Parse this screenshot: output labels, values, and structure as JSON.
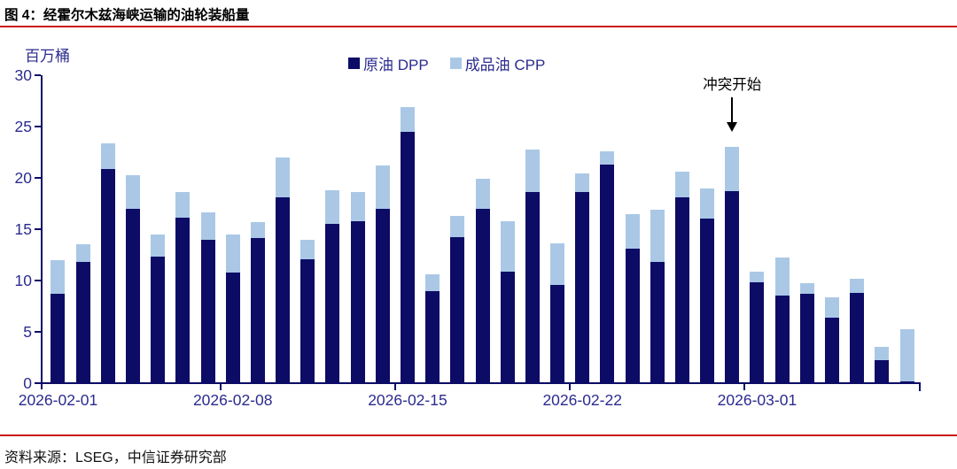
{
  "header": {
    "title": "图 4：经霍尔木兹海峡运输的油轮装船量"
  },
  "footer": {
    "source": "资料来源：LSEG，中信证券研究部"
  },
  "colors": {
    "bar_dpp": "#0c0c66",
    "bar_cpp": "#aac8e6",
    "axis": "#0c0c66",
    "axis_text": "#2b2b8f",
    "accent_red": "#c81414",
    "text": "#000000"
  },
  "chart_data": {
    "type": "bar",
    "stacked": true,
    "title": "经霍尔木兹海峡运输的油轮装船量",
    "unit_label": "百万桶",
    "ylabel": "百万桶",
    "ylim": [
      0,
      30
    ],
    "yticks": [
      0,
      5,
      10,
      15,
      20,
      25,
      30
    ],
    "grid": false,
    "legend_position": "top-center",
    "categories": [
      "2026-02-01",
      "2026-02-02",
      "2026-02-03",
      "2026-02-04",
      "2026-02-05",
      "2026-02-06",
      "2026-02-07",
      "2026-02-08",
      "2026-02-09",
      "2026-02-10",
      "2026-02-11",
      "2026-02-12",
      "2026-02-13",
      "2026-02-14",
      "2026-02-15",
      "2026-02-16",
      "2026-02-17",
      "2026-02-18",
      "2026-02-19",
      "2026-02-20",
      "2026-02-21",
      "2026-02-22",
      "2026-02-23",
      "2026-02-24",
      "2026-02-25",
      "2026-02-26",
      "2026-02-27",
      "2026-02-28",
      "2026-03-01",
      "2026-03-02",
      "2026-03-03",
      "2026-03-04",
      "2026-03-05",
      "2026-03-06",
      "2026-03-07"
    ],
    "xtick_labels": [
      "2026-02-01",
      "2026-02-08",
      "2026-02-15",
      "2026-02-22",
      "2026-03-01"
    ],
    "series": [
      {
        "name": "原油 DPP",
        "color": "#0c0c66",
        "values": [
          8.7,
          11.8,
          20.9,
          17.0,
          12.3,
          16.1,
          14.0,
          10.8,
          14.1,
          18.1,
          12.1,
          15.5,
          15.8,
          17.0,
          24.5,
          9.0,
          14.2,
          17.0,
          10.9,
          18.6,
          9.6,
          18.6,
          21.3,
          13.1,
          11.8,
          18.1,
          16.0,
          18.7,
          9.8,
          8.5,
          8.7,
          6.4,
          8.8,
          2.2,
          0.2
        ]
      },
      {
        "name": "成品油 CPP",
        "color": "#aac8e6",
        "values": [
          3.3,
          1.7,
          2.5,
          3.3,
          2.2,
          2.5,
          2.6,
          3.7,
          1.6,
          3.9,
          1.9,
          3.3,
          2.8,
          4.2,
          2.4,
          1.6,
          2.1,
          2.9,
          4.9,
          4.2,
          4.0,
          1.8,
          1.3,
          3.4,
          5.1,
          2.5,
          3.0,
          4.3,
          1.1,
          3.7,
          1.0,
          2.0,
          1.4,
          1.3,
          5.1
        ]
      }
    ],
    "annotation": {
      "text": "冲突开始",
      "x": "2026-02-28"
    }
  }
}
